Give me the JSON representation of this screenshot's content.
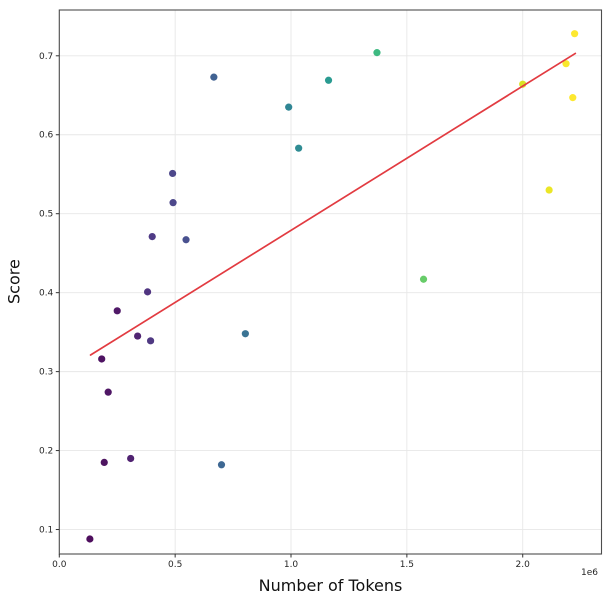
{
  "chart_data": {
    "type": "scatter",
    "title": "",
    "xlabel": "Number of Tokens",
    "ylabel": "Score",
    "x_offset_text": "1e6",
    "grid": true,
    "legend": "none",
    "xlim": [
      0,
      2340000
    ],
    "ylim": [
      0.069,
      0.758
    ],
    "x_ticks": [
      {
        "value": 0,
        "label": "0.0"
      },
      {
        "value": 500000,
        "label": "0.5"
      },
      {
        "value": 1000000,
        "label": "1.0"
      },
      {
        "value": 1500000,
        "label": "1.5"
      },
      {
        "value": 2000000,
        "label": "2.0"
      }
    ],
    "y_ticks": [
      {
        "value": 0.1,
        "label": "0.1"
      },
      {
        "value": 0.2,
        "label": "0.2"
      },
      {
        "value": 0.3,
        "label": "0.3"
      },
      {
        "value": 0.4,
        "label": "0.4"
      },
      {
        "value": 0.5,
        "label": "0.5"
      },
      {
        "value": 0.6,
        "label": "0.6"
      },
      {
        "value": 0.7,
        "label": "0.7"
      }
    ],
    "colormap": "viridis mapped to tokens",
    "points": [
      {
        "tokens": 132000,
        "score": 0.088,
        "color": "#440154"
      },
      {
        "tokens": 183000,
        "score": 0.316,
        "color": "#45065a"
      },
      {
        "tokens": 194000,
        "score": 0.185,
        "color": "#450859"
      },
      {
        "tokens": 211000,
        "score": 0.274,
        "color": "#460a5d"
      },
      {
        "tokens": 250000,
        "score": 0.377,
        "color": "#470d60"
      },
      {
        "tokens": 308000,
        "score": 0.19,
        "color": "#471669"
      },
      {
        "tokens": 338000,
        "score": 0.345,
        "color": "#481a6c"
      },
      {
        "tokens": 381000,
        "score": 0.401,
        "color": "#472a7a"
      },
      {
        "tokens": 394000,
        "score": 0.339,
        "color": "#462e7b"
      },
      {
        "tokens": 401000,
        "score": 0.471,
        "color": "#463080"
      },
      {
        "tokens": 489000,
        "score": 0.551,
        "color": "#433e85"
      },
      {
        "tokens": 491000,
        "score": 0.514,
        "color": "#433e85"
      },
      {
        "tokens": 547000,
        "score": 0.467,
        "color": "#3f4889"
      },
      {
        "tokens": 667000,
        "score": 0.673,
        "color": "#375a8c"
      },
      {
        "tokens": 700000,
        "score": 0.182,
        "color": "#34608d"
      },
      {
        "tokens": 803000,
        "score": 0.348,
        "color": "#2f6d8e"
      },
      {
        "tokens": 990000,
        "score": 0.635,
        "color": "#25808e"
      },
      {
        "tokens": 1033000,
        "score": 0.583,
        "color": "#24868d"
      },
      {
        "tokens": 1162000,
        "score": 0.669,
        "color": "#1f968b"
      },
      {
        "tokens": 1371000,
        "score": 0.704,
        "color": "#33b57a"
      },
      {
        "tokens": 1572000,
        "score": 0.417,
        "color": "#5fc961"
      },
      {
        "tokens": 2000000,
        "score": 0.664,
        "color": "#d8e219"
      },
      {
        "tokens": 2114000,
        "score": 0.53,
        "color": "#eae51a"
      },
      {
        "tokens": 2187000,
        "score": 0.69,
        "color": "#f8e621"
      },
      {
        "tokens": 2216000,
        "score": 0.647,
        "color": "#fde724"
      },
      {
        "tokens": 2224000,
        "score": 0.728,
        "color": "#fde725"
      }
    ],
    "trend_line": {
      "x1": 135000,
      "y1": 0.321,
      "x2": 2227000,
      "y2": 0.703,
      "color": "#e23b41",
      "width": 1.7
    }
  },
  "colors": {
    "background": "#ffffff",
    "grid": "#e7e7e7",
    "spine": "#4d4d4d",
    "tick": "#333333",
    "tick_label": "#262626"
  }
}
